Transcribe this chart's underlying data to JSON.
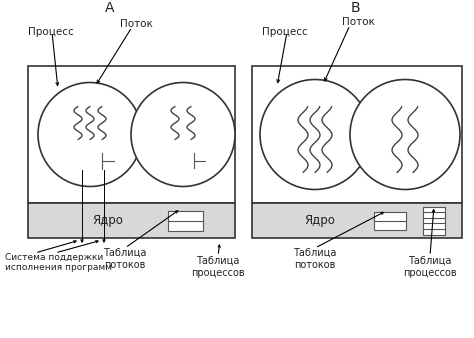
{
  "label_A": "A",
  "label_B": "B",
  "label_process": "Процесс",
  "label_thread": "Поток",
  "label_core": "Ядро",
  "label_thread_table": "Таблица\nпотоков",
  "label_process_table": "Таблица\nпроцессов",
  "label_runtime": "Система поддержки\nисполнения программ",
  "bg_color": "#ffffff"
}
